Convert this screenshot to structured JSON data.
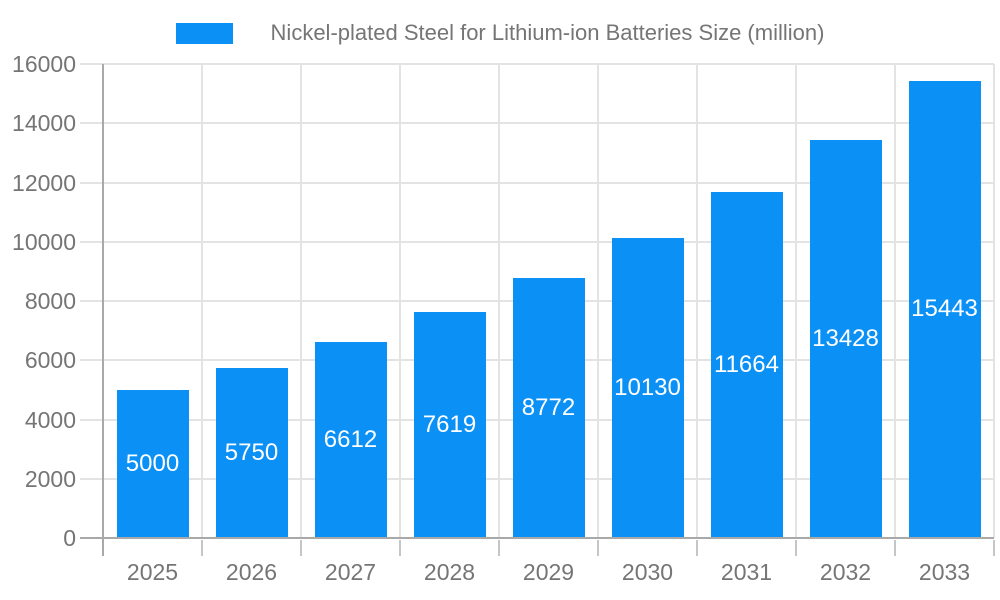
{
  "legend": {
    "label": "Nickel-plated Steel for Lithium-ion Batteries Size (million)"
  },
  "chart_data": {
    "type": "bar",
    "title": "Nickel-plated Steel for Lithium-ion Batteries Size (million)",
    "categories": [
      "2025",
      "2026",
      "2027",
      "2028",
      "2029",
      "2030",
      "2031",
      "2032",
      "2033"
    ],
    "values": [
      5000,
      5750,
      6612,
      7619,
      8772,
      10130,
      11664,
      13428,
      15443
    ],
    "xlabel": "",
    "ylabel": "",
    "ylim": [
      0,
      16000
    ],
    "ytick_step": 2000,
    "grid": true,
    "legend_position": "top-center",
    "bar_labels_visible": true,
    "colors": {
      "bar": "#0b90f6",
      "grid": "#e3e3e3",
      "axis": "#a9a9a9",
      "tick": "#c6c6c6",
      "text": "#757575",
      "bar_label": "#ffffff",
      "background": "#ffffff"
    }
  }
}
